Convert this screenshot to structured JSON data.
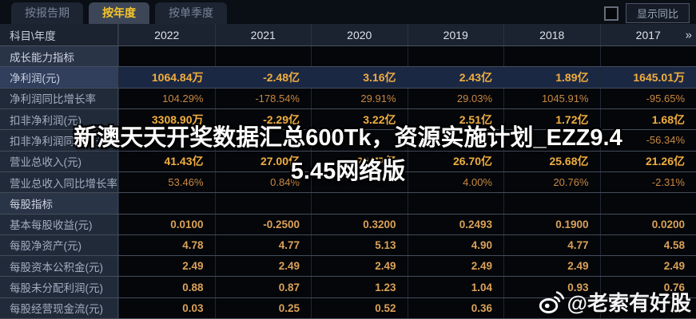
{
  "tabs": [
    {
      "label": "按报告期",
      "active": false
    },
    {
      "label": "按年度",
      "active": true
    },
    {
      "label": "按单季度",
      "active": false
    }
  ],
  "toolbar": {
    "show_yoy_label": "显示同比",
    "checkbox_checked": false
  },
  "table": {
    "corner_label": "科目\\年度",
    "years": [
      "2022",
      "2021",
      "2020",
      "2019",
      "2018",
      "2017"
    ],
    "more_icon": "»",
    "rows": [
      {
        "label": "成长能力指标",
        "type": "section",
        "highlight": false,
        "values": [
          "",
          "",
          "",
          "",
          "",
          ""
        ]
      },
      {
        "label": "净利润(元)",
        "type": "money",
        "highlight": true,
        "values": [
          "1064.84万",
          "-2.48亿",
          "3.16亿",
          "2.43亿",
          "1.89亿",
          "1645.01万"
        ]
      },
      {
        "label": "净利润同比增长率",
        "type": "percent",
        "highlight": false,
        "values": [
          "104.29%",
          "-178.54%",
          "29.91%",
          "29.03%",
          "1045.91%",
          "-95.65%"
        ]
      },
      {
        "label": "扣非净利润(元)",
        "type": "money",
        "highlight": false,
        "values": [
          "3308.90万",
          "-2.29亿",
          "3.22亿",
          "2.51亿",
          "1.72亿",
          "1.68亿"
        ]
      },
      {
        "label": "扣非净利润同比增长率",
        "type": "percent",
        "highlight": false,
        "values": [
          "",
          "",
          "",
          "",
          "",
          "-56.34%"
        ]
      },
      {
        "label": "营业总收入(元)",
        "type": "money",
        "highlight": false,
        "values": [
          "41.43亿",
          "27.00亿",
          "26.77亿",
          "26.70亿",
          "25.68亿",
          "21.26亿"
        ]
      },
      {
        "label": "营业总收入同比增长率",
        "type": "percent",
        "highlight": false,
        "values": [
          "53.46%",
          "0.84%",
          "",
          "4.00%",
          "20.76%",
          "-2.31%"
        ]
      },
      {
        "label": "每股指标",
        "type": "section",
        "highlight": false,
        "values": [
          "",
          "",
          "",
          "",
          "",
          ""
        ]
      },
      {
        "label": "基本每股收益(元)",
        "type": "pershare",
        "highlight": false,
        "values": [
          "0.0100",
          "-0.2500",
          "0.3200",
          "0.2493",
          "0.1900",
          "0.0200"
        ]
      },
      {
        "label": "每股净资产(元)",
        "type": "pershare",
        "highlight": false,
        "values": [
          "4.78",
          "4.77",
          "5.13",
          "4.90",
          "4.77",
          "4.58"
        ]
      },
      {
        "label": "每股资本公积金(元)",
        "type": "pershare",
        "highlight": false,
        "values": [
          "2.49",
          "2.49",
          "2.49",
          "2.49",
          "2.49",
          "2.49"
        ]
      },
      {
        "label": "每股未分配利润(元)",
        "type": "pershare",
        "highlight": false,
        "values": [
          "0.88",
          "0.87",
          "1.23",
          "1.04",
          "0.93",
          "0.76"
        ]
      },
      {
        "label": "每股经营现金流(元)",
        "type": "pershare",
        "highlight": false,
        "values": [
          "0.03",
          "0.25",
          "0.52",
          "0.36",
          "",
          ""
        ]
      }
    ]
  },
  "overlay": {
    "watermark_text": "新澳天天开奖数据汇总600Tk，资源实施计划_EZZ9.45.45网络版"
  },
  "footer_watermark": {
    "handle": "@老索有好股"
  },
  "colors": {
    "tab_active_text": "#f6c52c",
    "money_value": "#f1ae3f",
    "percent_value": "#c9883f",
    "pershare_value": "#dba258",
    "highlight_row_bg": "#1b2844"
  }
}
